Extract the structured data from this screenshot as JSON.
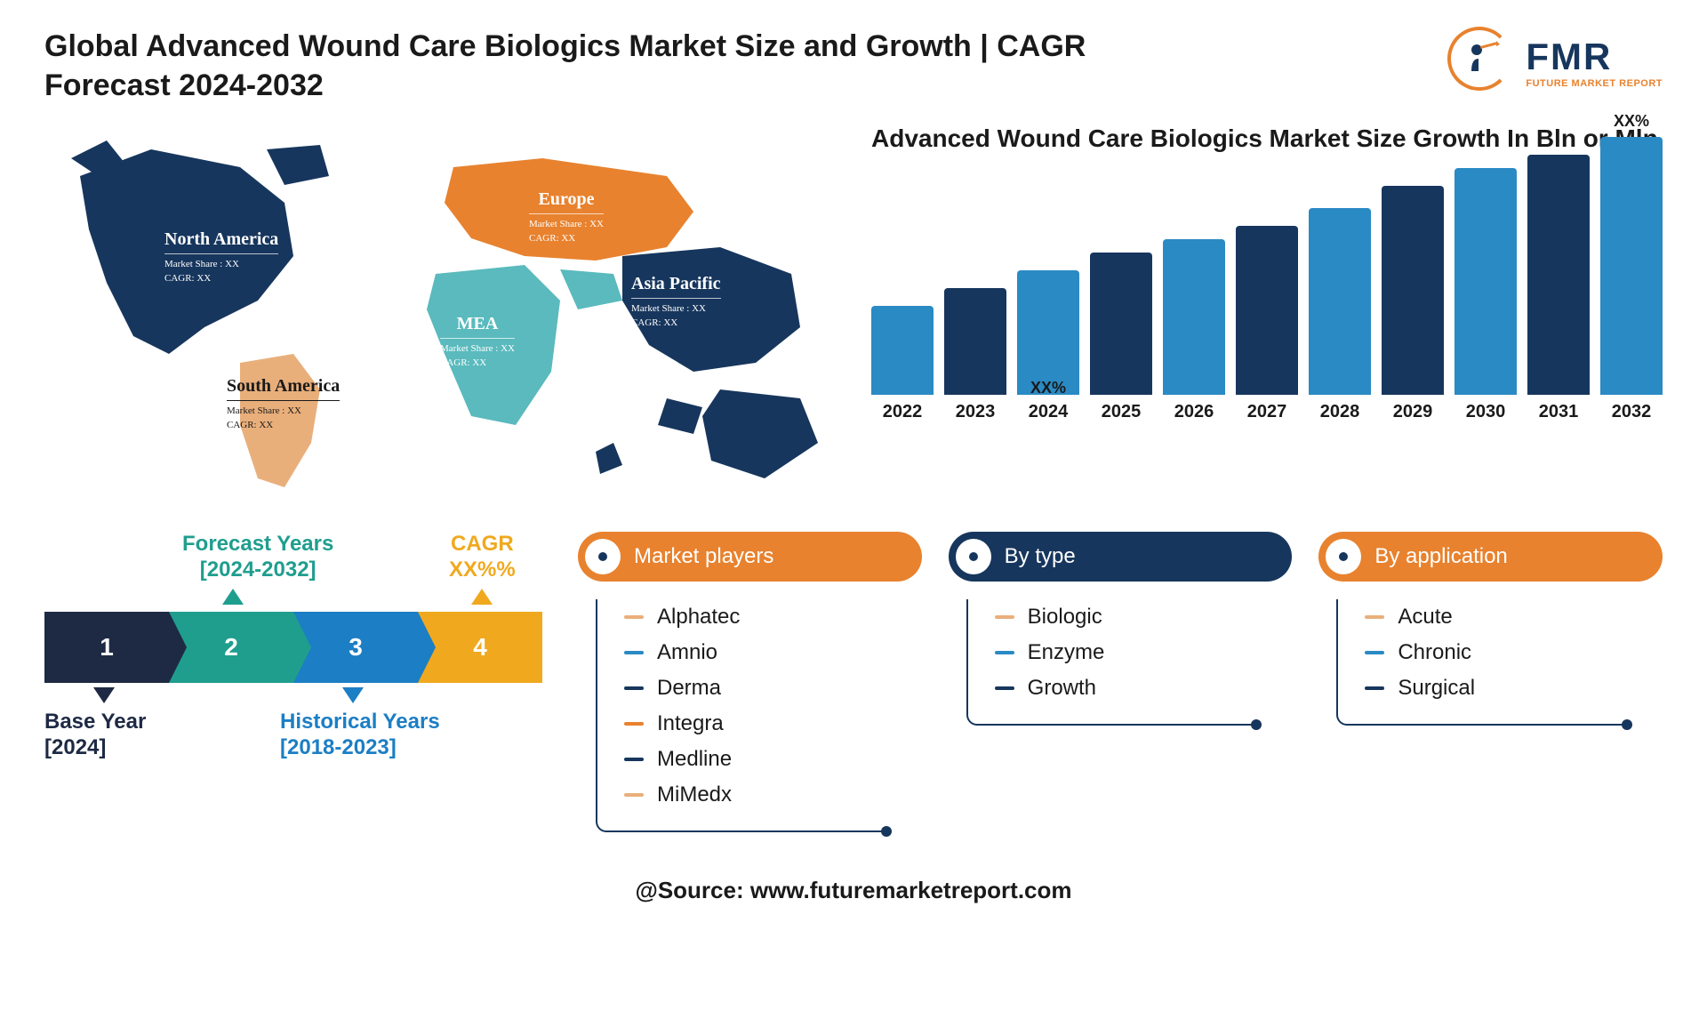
{
  "title": "Global Advanced Wound Care Biologics Market Size and Growth | CAGR Forecast 2024-2032",
  "logo": {
    "fmr": "FMR",
    "sub": "FUTURE MARKET REPORT"
  },
  "map": {
    "regions": [
      {
        "id": "north-america",
        "name": "North America",
        "share": "Market Share : XX",
        "cagr": "CAGR: XX",
        "color": "#17365d"
      },
      {
        "id": "south-america",
        "name": "South America",
        "share": "Market Share : XX",
        "cagr": "CAGR: XX",
        "color": "#e9af7b"
      },
      {
        "id": "europe",
        "name": "Europe",
        "share": "Market Share : XX",
        "cagr": "CAGR: XX",
        "color": "#e8822e"
      },
      {
        "id": "mea",
        "name": "MEA",
        "share": "Market Share : XX",
        "cagr": "CAGR: XX",
        "color": "#5ababd"
      },
      {
        "id": "asia-pacific",
        "name": "Asia Pacific",
        "share": "Market Share : XX",
        "cagr": "CAGR: XX",
        "color": "#17365d"
      }
    ]
  },
  "chart": {
    "title": "Advanced Wound Care Biologics Market Size Growth In Bln or Mln",
    "type": "bar",
    "years": [
      "2022",
      "2023",
      "2024",
      "2025",
      "2026",
      "2027",
      "2028",
      "2029",
      "2030",
      "2031",
      "2032"
    ],
    "heights": [
      100,
      120,
      140,
      160,
      175,
      190,
      210,
      235,
      255,
      270,
      290
    ],
    "colors": [
      "#2a8ac4",
      "#17365d",
      "#2a8ac4",
      "#17365d",
      "#2a8ac4",
      "#17365d",
      "#2a8ac4",
      "#17365d",
      "#2a8ac4",
      "#17365d",
      "#2a8ac4"
    ],
    "pct_labels": {
      "2": "XX%",
      "10": "XX%"
    },
    "max_height": 290
  },
  "timeline": {
    "segments": [
      {
        "n": "1",
        "cls": "seg1",
        "color": "#1e2a44"
      },
      {
        "n": "2",
        "cls": "seg2",
        "color": "#1f9e8e"
      },
      {
        "n": "3",
        "cls": "seg3",
        "color": "#1c7ec4"
      },
      {
        "n": "4",
        "cls": "seg4",
        "color": "#f0a91e"
      }
    ],
    "labels": {
      "base": {
        "title": "Base Year",
        "range": "[2024]",
        "color": "#1e2a44"
      },
      "forecast": {
        "title": "Forecast Years",
        "range": "[2024-2032]",
        "color": "#1f9e8e"
      },
      "historical": {
        "title": "Historical Years",
        "range": "[2018-2023]",
        "color": "#1c7ec4"
      },
      "cagr": {
        "title": "CAGR",
        "value": "XX%%",
        "color": "#f0a91e"
      }
    }
  },
  "columns": [
    {
      "id": "market-players",
      "pill": "Market players",
      "pill_bg": "#e8822e",
      "items": [
        {
          "t": "Alphatec",
          "c": "#e9af7b"
        },
        {
          "t": "Amnio",
          "c": "#2a8ac4"
        },
        {
          "t": "Derma",
          "c": "#17365d"
        },
        {
          "t": "Integra",
          "c": "#e8822e"
        },
        {
          "t": "Medline",
          "c": "#17365d"
        },
        {
          "t": "MiMedx",
          "c": "#e9af7b"
        }
      ]
    },
    {
      "id": "by-type",
      "pill": "By type",
      "pill_bg": "#17365d",
      "items": [
        {
          "t": "Biologic",
          "c": "#e9af7b"
        },
        {
          "t": "Enzyme",
          "c": "#2a8ac4"
        },
        {
          "t": "Growth",
          "c": "#17365d"
        }
      ]
    },
    {
      "id": "by-application",
      "pill": "By application",
      "pill_bg": "#e8822e",
      "items": [
        {
          "t": "Acute",
          "c": "#e9af7b"
        },
        {
          "t": "Chronic",
          "c": "#2a8ac4"
        },
        {
          "t": "Surgical",
          "c": "#17365d"
        }
      ]
    }
  ],
  "source": "@Source: www.futuremarketreport.com"
}
